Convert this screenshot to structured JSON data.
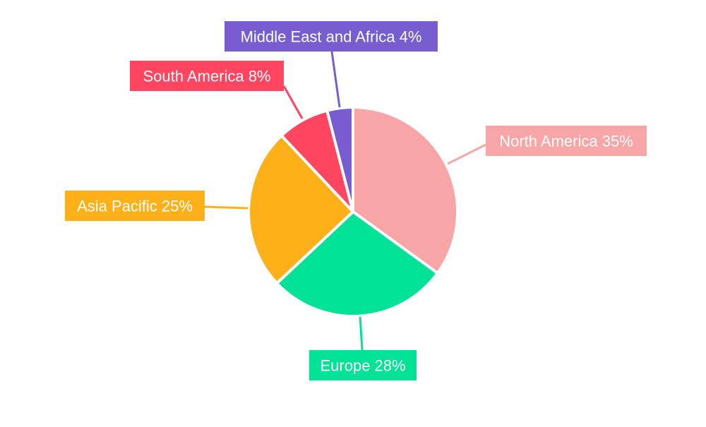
{
  "chart_data": {
    "type": "pie",
    "title": "",
    "start_angle": "top, clockwise",
    "legend": "none",
    "slices": [
      {
        "label": "North America",
        "value": 35,
        "text": "North America 35%",
        "color": "#F8A5A6"
      },
      {
        "label": "Europe",
        "value": 28,
        "text": "Europe 28%",
        "color": "#00E396"
      },
      {
        "label": "Asia Pacific",
        "value": 25,
        "text": "Asia Pacific 25%",
        "color": "#FEB019"
      },
      {
        "label": "South America",
        "value": 8,
        "text": "South America 8%",
        "color": "#FF4560"
      },
      {
        "label": "Middle East and Africa",
        "value": 4,
        "text": "Middle East and Africa 4%",
        "color": "#775DD0"
      }
    ]
  }
}
